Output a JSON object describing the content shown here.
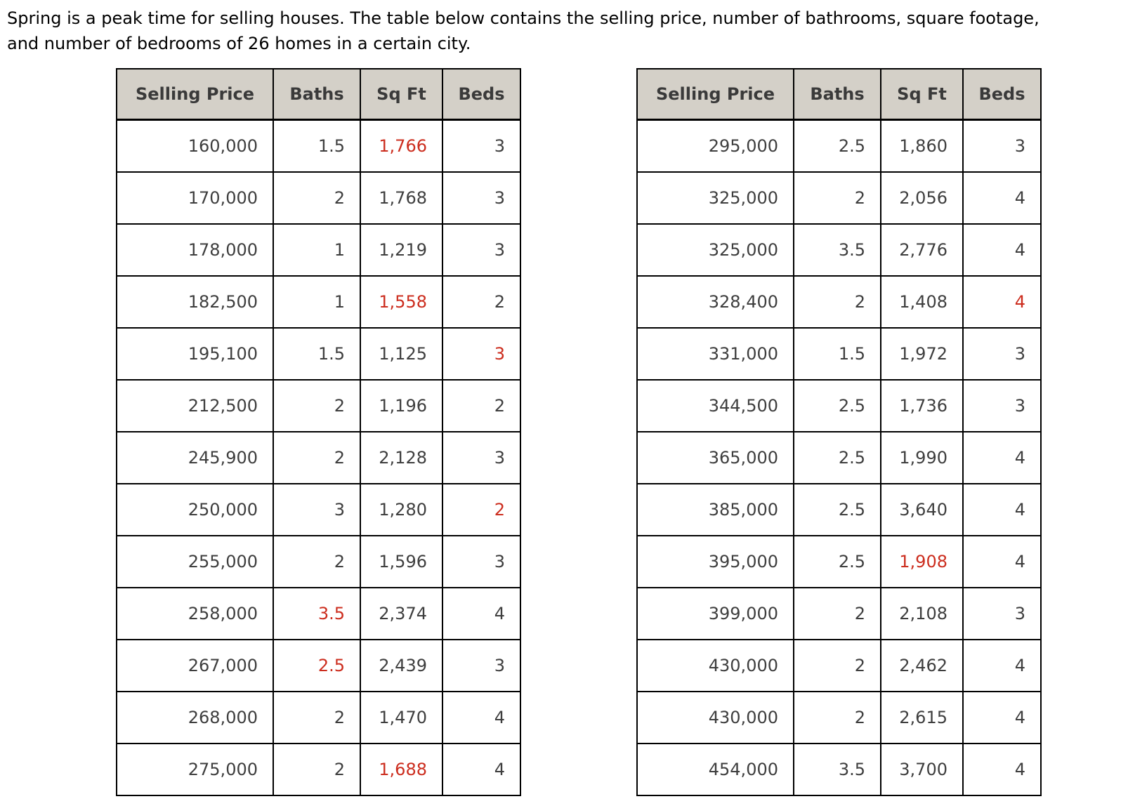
{
  "intro": {
    "line1": "Spring is a peak time for selling houses. The table below contains the selling price, number of bathrooms, square footage,",
    "line2": "and number of bedrooms of 26 homes in a certain city."
  },
  "columns": [
    "Selling Price",
    "Baths",
    "Sq Ft",
    "Beds"
  ],
  "colors": {
    "red_highlight": "#cc2d1e",
    "header_background": "#d4d0c8",
    "grid_border": "#000000",
    "cell_text": "#3e3e3e"
  },
  "tables": [
    {
      "name": "homes-table-left",
      "rows": [
        {
          "price": "160,000",
          "baths": "1.5",
          "sqft": "1,766",
          "beds": "3",
          "red": "sqft"
        },
        {
          "price": "170,000",
          "baths": "2",
          "sqft": "1,768",
          "beds": "3",
          "red": null
        },
        {
          "price": "178,000",
          "baths": "1",
          "sqft": "1,219",
          "beds": "3",
          "red": null
        },
        {
          "price": "182,500",
          "baths": "1",
          "sqft": "1,558",
          "beds": "2",
          "red": "sqft"
        },
        {
          "price": "195,100",
          "baths": "1.5",
          "sqft": "1,125",
          "beds": "3",
          "red": "beds"
        },
        {
          "price": "212,500",
          "baths": "2",
          "sqft": "1,196",
          "beds": "2",
          "red": null
        },
        {
          "price": "245,900",
          "baths": "2",
          "sqft": "2,128",
          "beds": "3",
          "red": null
        },
        {
          "price": "250,000",
          "baths": "3",
          "sqft": "1,280",
          "beds": "2",
          "red": "beds"
        },
        {
          "price": "255,000",
          "baths": "2",
          "sqft": "1,596",
          "beds": "3",
          "red": null
        },
        {
          "price": "258,000",
          "baths": "3.5",
          "sqft": "2,374",
          "beds": "4",
          "red": "baths"
        },
        {
          "price": "267,000",
          "baths": "2.5",
          "sqft": "2,439",
          "beds": "3",
          "red": "baths"
        },
        {
          "price": "268,000",
          "baths": "2",
          "sqft": "1,470",
          "beds": "4",
          "red": null
        },
        {
          "price": "275,000",
          "baths": "2",
          "sqft": "1,688",
          "beds": "4",
          "red": "sqft"
        }
      ]
    },
    {
      "name": "homes-table-right",
      "rows": [
        {
          "price": "295,000",
          "baths": "2.5",
          "sqft": "1,860",
          "beds": "3",
          "red": null
        },
        {
          "price": "325,000",
          "baths": "2",
          "sqft": "2,056",
          "beds": "4",
          "red": null
        },
        {
          "price": "325,000",
          "baths": "3.5",
          "sqft": "2,776",
          "beds": "4",
          "red": null
        },
        {
          "price": "328,400",
          "baths": "2",
          "sqft": "1,408",
          "beds": "4",
          "red": "beds"
        },
        {
          "price": "331,000",
          "baths": "1.5",
          "sqft": "1,972",
          "beds": "3",
          "red": null
        },
        {
          "price": "344,500",
          "baths": "2.5",
          "sqft": "1,736",
          "beds": "3",
          "red": null
        },
        {
          "price": "365,000",
          "baths": "2.5",
          "sqft": "1,990",
          "beds": "4",
          "red": null
        },
        {
          "price": "385,000",
          "baths": "2.5",
          "sqft": "3,640",
          "beds": "4",
          "red": null
        },
        {
          "price": "395,000",
          "baths": "2.5",
          "sqft": "1,908",
          "beds": "4",
          "red": "sqft"
        },
        {
          "price": "399,000",
          "baths": "2",
          "sqft": "2,108",
          "beds": "3",
          "red": null
        },
        {
          "price": "430,000",
          "baths": "2",
          "sqft": "2,462",
          "beds": "4",
          "red": null
        },
        {
          "price": "430,000",
          "baths": "2",
          "sqft": "2,615",
          "beds": "4",
          "red": null
        },
        {
          "price": "454,000",
          "baths": "3.5",
          "sqft": "3,700",
          "beds": "4",
          "red": null
        }
      ]
    }
  ]
}
